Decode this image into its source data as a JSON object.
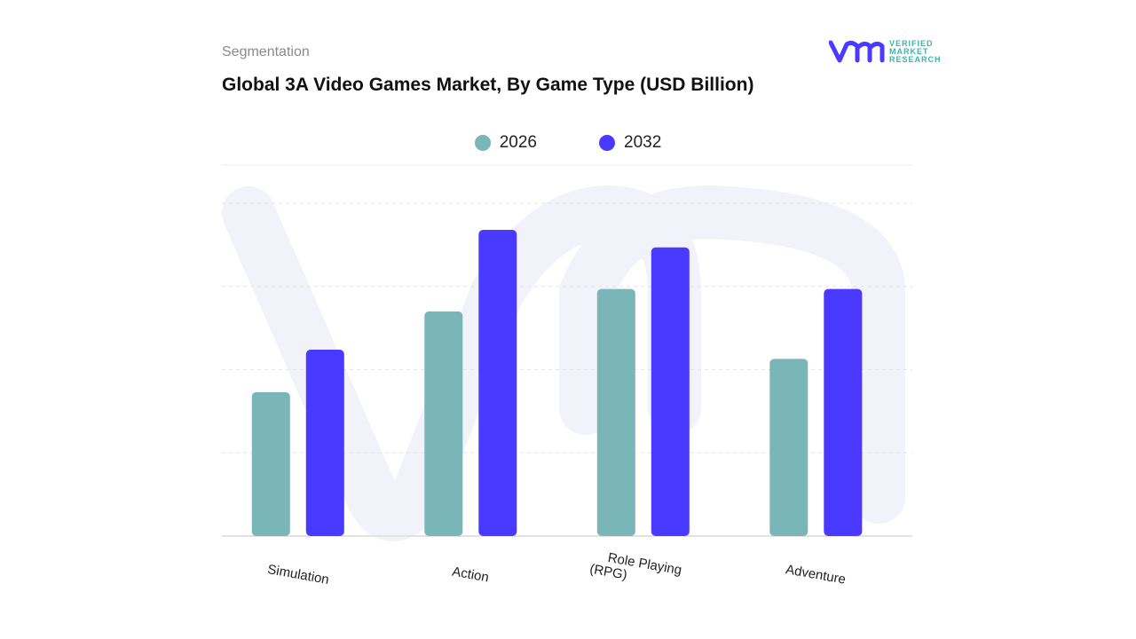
{
  "header": {
    "segment_label": "Segmentation",
    "title": "Global 3A Video Games Market, By Game Type (USD Billion)"
  },
  "logo": {
    "text_lines": [
      "VERIFIED",
      "MARKET",
      "RESEARCH"
    ],
    "colors": {
      "mark": "#4a3aff",
      "text": "#3fb3a8"
    }
  },
  "chart_data": {
    "type": "bar",
    "title": "Global 3A Video Games Market, By Game Type (USD Billion)",
    "categories": [
      "Simulation",
      "Action",
      "Role Playing (RPG)",
      "Adventure"
    ],
    "category_lines": [
      [
        "Simulation"
      ],
      [
        "Action"
      ],
      [
        "Role Playing",
        "(RPG)"
      ],
      [
        "Adventure"
      ]
    ],
    "series": [
      {
        "name": "2026",
        "color": "#7ab5b8",
        "values": [
          1.73,
          2.7,
          2.97,
          2.13
        ]
      },
      {
        "name": "2032",
        "color": "#4a3aff",
        "values": [
          2.24,
          3.68,
          3.47,
          2.97
        ]
      }
    ],
    "ylim": [
      0,
      4
    ],
    "y_axis_labels_shown": false,
    "grid": true,
    "legend_position": "top-center",
    "xlabel": "",
    "ylabel": ""
  }
}
